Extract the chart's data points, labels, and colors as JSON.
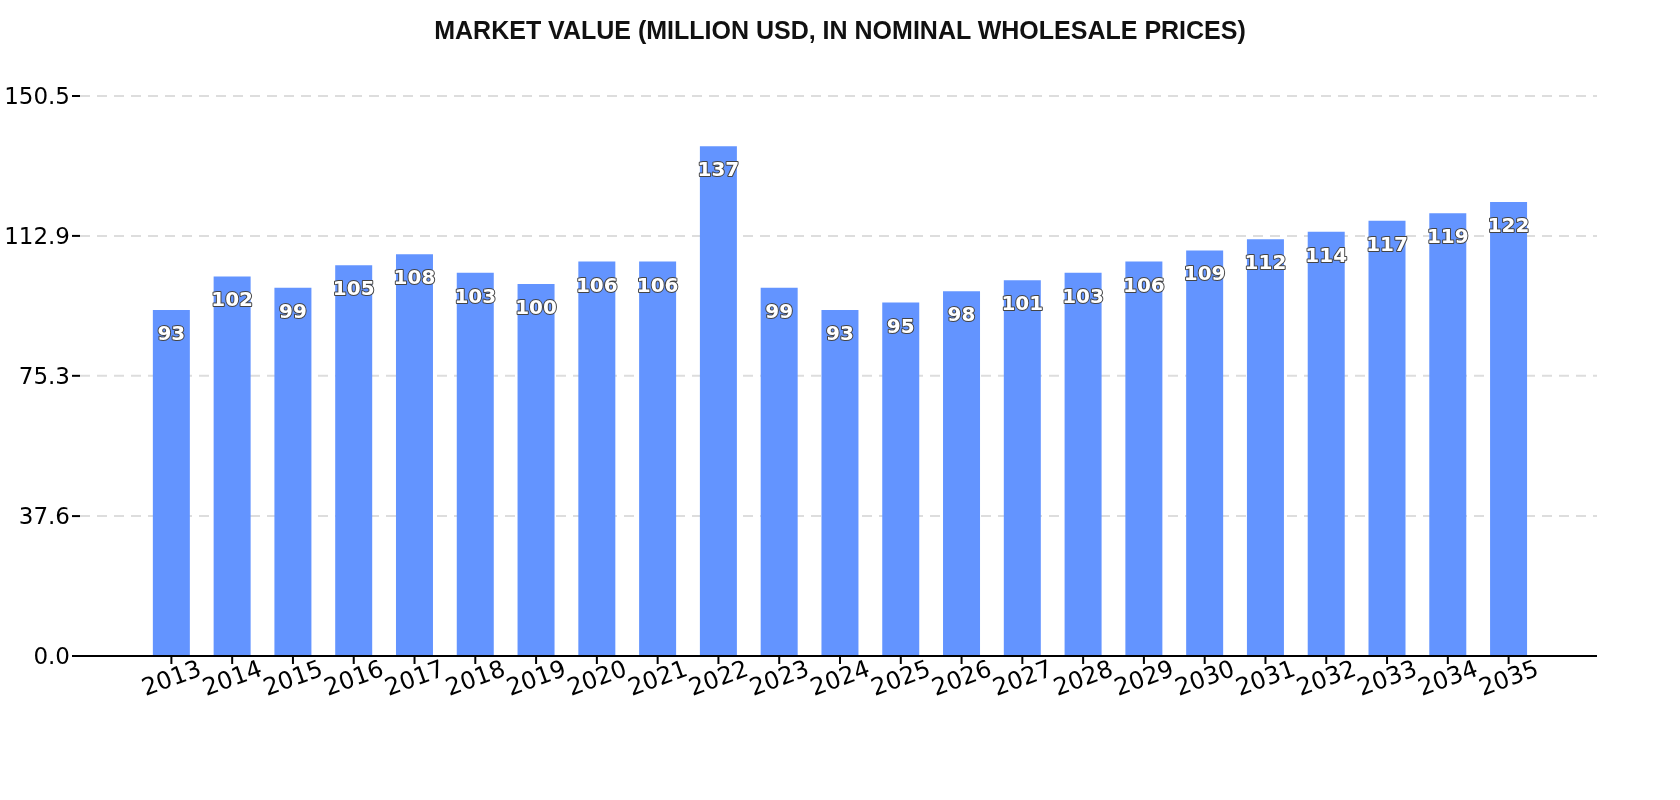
{
  "chart_data": {
    "type": "bar",
    "title": "MARKET VALUE (MILLION USD, IN NOMINAL WHOLESALE PRICES)",
    "categories": [
      "2013",
      "2014",
      "2015",
      "2016",
      "2017",
      "2018",
      "2019",
      "2020",
      "2021",
      "2022",
      "2023",
      "2024",
      "2025",
      "2026",
      "2027",
      "2028",
      "2029",
      "2030",
      "2031",
      "2032",
      "2033",
      "2034",
      "2035"
    ],
    "values": [
      93,
      102,
      99,
      105,
      108,
      103,
      100,
      106,
      106,
      137,
      99,
      93,
      95,
      98,
      101,
      103,
      106,
      109,
      112,
      114,
      117,
      119,
      122
    ],
    "color": "#6394ff",
    "ylim": [
      0,
      150.5
    ],
    "yticks": [
      {
        "value": 0,
        "label": "0.0"
      },
      37.6,
      75.3,
      112.9,
      150.5
    ],
    "grid": "y",
    "data_labels": true
  }
}
